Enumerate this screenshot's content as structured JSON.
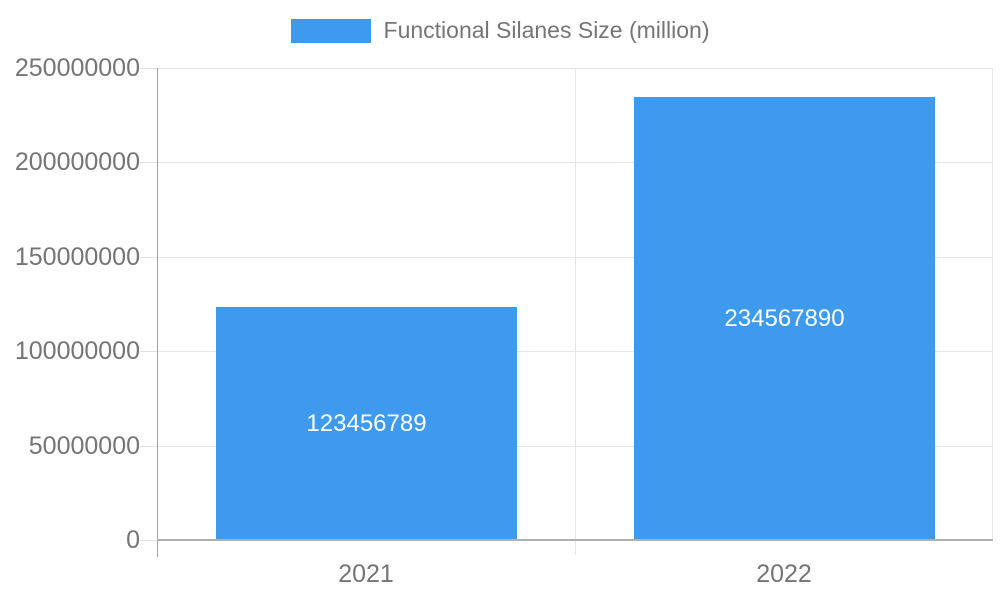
{
  "chart_data": {
    "type": "bar",
    "title": "",
    "categories": [
      "2021",
      "2022"
    ],
    "series": [
      {
        "name": "Functional Silanes Size (million)",
        "color": "#3d9aec",
        "values": [
          123456789,
          234567890
        ]
      }
    ],
    "value_labels": [
      "123456789",
      "234567890"
    ],
    "y_ticks": [
      "250000000",
      "200000000",
      "150000000",
      "100000000",
      "50000000",
      "0"
    ],
    "ylim": [
      0,
      250000000
    ],
    "xlabel": "",
    "ylabel": "",
    "grid": true,
    "legend_position": "top"
  },
  "legend": {
    "label": "Functional Silanes Size (million)",
    "swatch_color": "#3d9aec"
  },
  "colors": {
    "bar": "#3d9aec",
    "axis_text": "#757575",
    "bar_label_text": "#ffffff",
    "gridline": "#e6e6e6",
    "axis_line": "#b0b0b0",
    "background": "#ffffff"
  }
}
